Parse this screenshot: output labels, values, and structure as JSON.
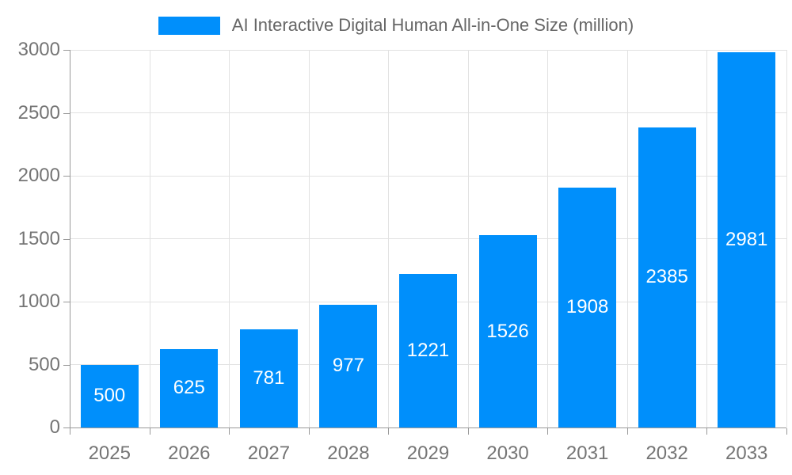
{
  "chart_data": {
    "type": "bar",
    "title": "AI Interactive Digital Human All-in-One Size (million)",
    "categories": [
      "2025",
      "2026",
      "2027",
      "2028",
      "2029",
      "2030",
      "2031",
      "2032",
      "2033"
    ],
    "values": [
      500,
      625,
      781,
      977,
      1221,
      1526,
      1908,
      2385,
      2981
    ],
    "series": [
      {
        "name": "AI Interactive Digital Human All-in-One Size (million)",
        "values": [
          500,
          625,
          781,
          977,
          1221,
          1526,
          1908,
          2385,
          2981
        ]
      }
    ],
    "xlabel": "",
    "ylabel": "",
    "ylim": [
      0,
      3000
    ],
    "yticks": [
      0,
      500,
      1000,
      1500,
      2000,
      2500,
      3000
    ],
    "grid": true,
    "legend_position": "top-center",
    "bar_label_position": "inside-center",
    "colors": {
      "bar": "#008ffb",
      "axis_line": "#999999",
      "gridline": "#e2e2e2",
      "axis_label": "#757575",
      "legend_text": "#666666",
      "bar_label": "#ffffff",
      "background": "#ffffff"
    }
  }
}
